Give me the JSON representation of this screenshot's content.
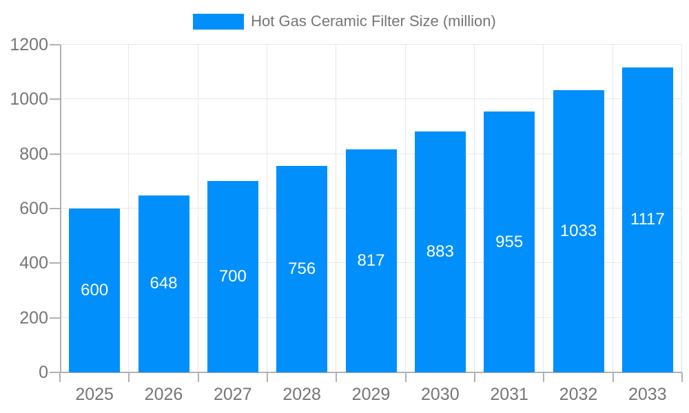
{
  "chart_data": {
    "type": "bar",
    "title": "",
    "legend": {
      "label": "Hot Gas Ceramic Filter Size (million)",
      "position": "top"
    },
    "categories": [
      "2025",
      "2026",
      "2027",
      "2028",
      "2029",
      "2030",
      "2031",
      "2032",
      "2033"
    ],
    "series": [
      {
        "name": "Hot Gas Ceramic Filter Size (million)",
        "values": [
          600,
          648,
          700,
          756,
          817,
          883,
          955,
          1033,
          1117
        ]
      }
    ],
    "xlabel": "",
    "ylabel": "",
    "ylim": [
      0,
      1200
    ],
    "y_ticks": [
      0,
      200,
      400,
      600,
      800,
      1000,
      1200
    ],
    "grid": {
      "horizontal": true,
      "vertical": true
    },
    "data_labels": {
      "show": true,
      "position": "center"
    },
    "colors": {
      "bar": "#008FFB",
      "axis": "#b0b0b0",
      "gridline": "#e7e7e7",
      "tick_label": "#757575",
      "legend_text": "#757575",
      "data_label": "#ffffff",
      "background": "#ffffff"
    }
  }
}
